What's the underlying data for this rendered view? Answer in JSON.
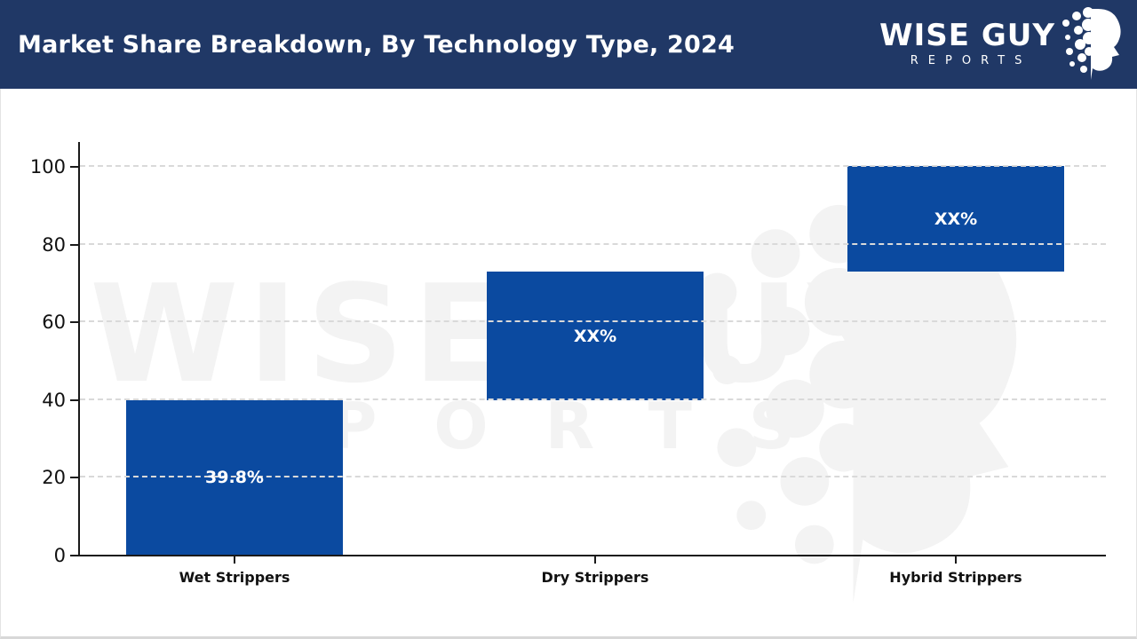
{
  "header": {
    "title": "Market Share Breakdown, By Technology Type, 2024",
    "logo": {
      "line1": "WISE GUY",
      "line2": "REPORTS"
    }
  },
  "watermark": {
    "line1": "WISE GUY",
    "line2": "REPORTS"
  },
  "colors": {
    "header_bg": "#203866",
    "bar": "#0b4aa0",
    "grid": "#d9d9d9",
    "axis": "#1a1a1a",
    "watermark": "#f3f3f3",
    "bar_label": "#ffffff",
    "tick_label": "#111111"
  },
  "chart_data": {
    "type": "bar",
    "subtype": "floating-stacked",
    "title": "Market Share Breakdown, By Technology Type, 2024",
    "categories": [
      "Wet Strippers",
      "Dry Strippers",
      "Hybrid Strippers"
    ],
    "segments": [
      {
        "category": "Wet Strippers",
        "start": 0,
        "end": 39.8,
        "label": "39.8%"
      },
      {
        "category": "Dry Strippers",
        "start": 39.8,
        "end": 72.8,
        "label": "XX%"
      },
      {
        "category": "Hybrid Strippers",
        "start": 72.8,
        "end": 100,
        "label": "XX%"
      }
    ],
    "y_ticks": [
      0,
      20,
      40,
      60,
      80,
      100
    ],
    "ylim": [
      0,
      106
    ],
    "xlabel": "",
    "ylabel": "",
    "grid": "dashed-horizontal-above-bars",
    "legend": "none"
  }
}
